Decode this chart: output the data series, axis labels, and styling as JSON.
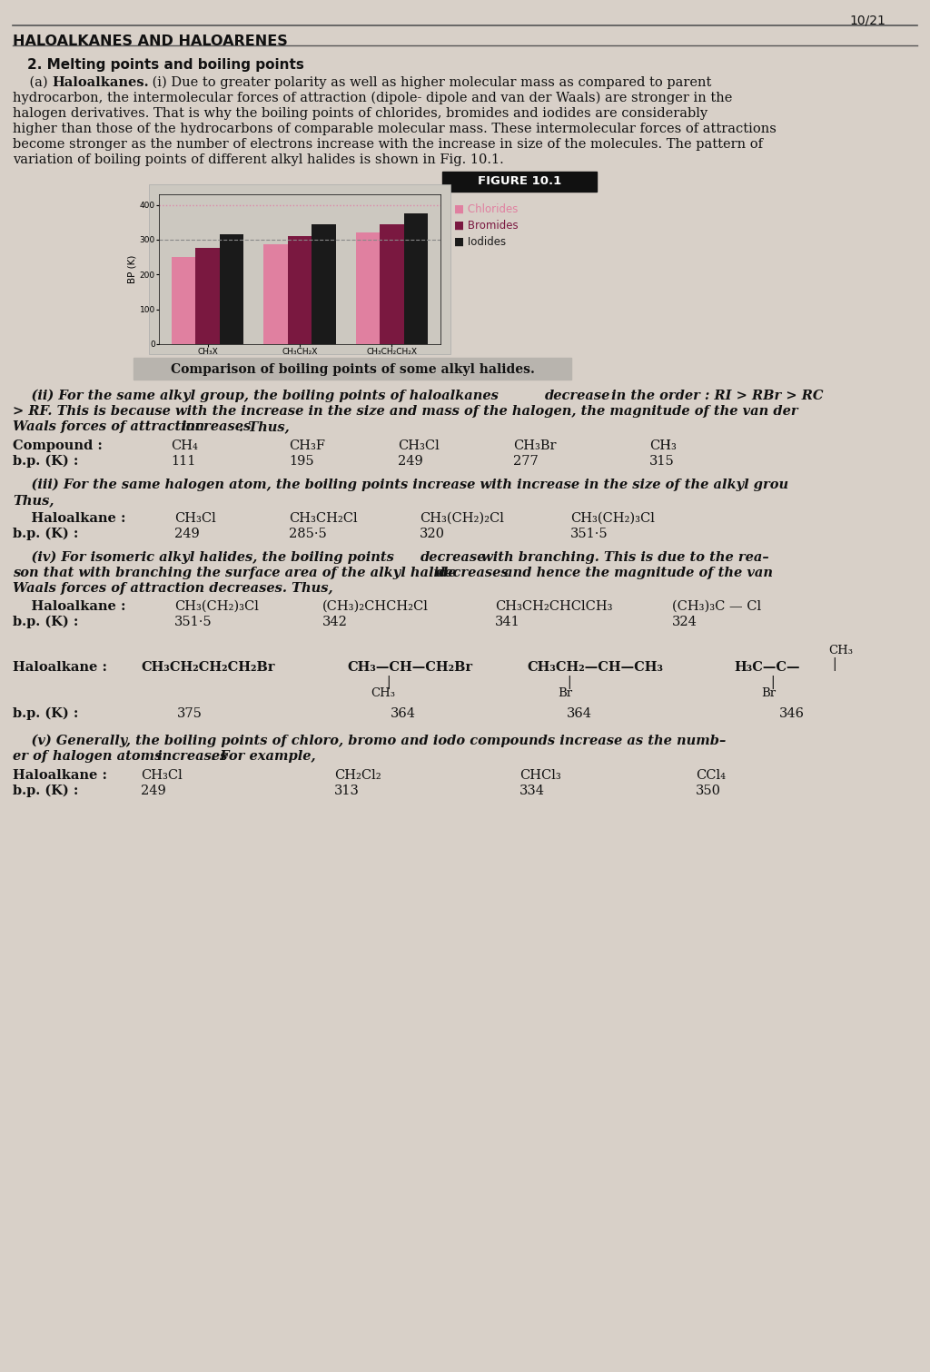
{
  "page_number": "10/21",
  "header": "HALOALKANES AND HALOARENES",
  "section_title": "2. Melting points and boiling points",
  "figure_label": "FIGURE 10.1",
  "chart_ylabel": "BP (K)",
  "chart_xticks": [
    "CH₃X",
    "CH₃CH₂X",
    "CH₃CH₂CH₂X"
  ],
  "chart_yticks": [
    0,
    100,
    200,
    300,
    400
  ],
  "chlorides_values": [
    249,
    285.5,
    320
  ],
  "bromides_values": [
    277,
    311,
    344
  ],
  "iodides_values": [
    315,
    345,
    376
  ],
  "chloride_color": "#e080a0",
  "bromide_color": "#7a1840",
  "iodide_color": "#1a1a1a",
  "chart_legend": [
    "Chlorides",
    "Bromides",
    "Iodides"
  ],
  "chart_caption": "Comparison of boiling points of some alkyl halides.",
  "bg_color": "#d8d0c8",
  "chart_bg": "#ccc8c0",
  "text_color": "#111111",
  "caption_bg": "#b8b4ae",
  "figure_box_color": "#111111",
  "para1_lines": [
    "    (a) Haloalkanes. (i) Due to greater polarity as well as higher molecular mass as compared to parent",
    "hydrocarbon, the intermolecular forces of attraction (dipole- dipole and van der Waals) are stronger in the",
    "halogen derivatives. That is why the boiling points of chlorides, bromides and iodides are considerably",
    "higher than those of the hydrocarbons of comparable molecular mass. These intermolecular forces of attractions",
    "become stronger as the number of electrons increase with the increase in size of the molecules. The pattern of",
    "variation of boiling points of different alkyl halides is shown in Fig. 10.1."
  ],
  "para2_lines": [
    "    (ii) For the same alkyl group, the boiling points of haloalkanes decrease in the order : RI > RBr > RC",
    "> RF. This is because with the increase in the size and mass of the halogen, the magnitude of the van der",
    "Waals forces of attraction increases. Thus,"
  ],
  "compounds_ii": [
    "CH₄",
    "CH₃F",
    "CH₃Cl",
    "CH₃Br",
    "CH₃"
  ],
  "bps_ii": [
    "111",
    "195",
    "249",
    "277",
    "315"
  ],
  "para3_line": "    (iii) For the same halogen atom, the boiling points increase with increase in the size of the alkyl grou",
  "haloalkanes_iii": [
    "CH₃Cl",
    "CH₃CH₂Cl",
    "CH₃(CH₂)₂Cl",
    "CH₃(CH₂)₃Cl"
  ],
  "bps_iii": [
    "249",
    "285·5",
    "320",
    "351·5"
  ],
  "para4_lines": [
    "    (iv) For isomeric alkyl halides, the boiling points decrease with branching. This is due to the rea–",
    "son that with branching the surface area of the alkyl halide decreases and hence the magnitude of the van",
    "Waals forces of attraction decreases. Thus,"
  ],
  "haloalkanes_iv": [
    "CH₃(CH₂)₃Cl",
    "(CH₃)₂CHCH₂Cl",
    "CH₃CH₂CHClCH₃",
    "(CH₃)₃C — Cl"
  ],
  "bps_iv": [
    "351·5",
    "342",
    "341",
    "324"
  ],
  "haloalkane_ivb_1": "CH₃CH₂CH₂CH₂Br",
  "haloalkane_ivb_2a": "CH₃—CH—CH₂Br",
  "haloalkane_ivb_2b": "CH₃",
  "haloalkane_ivb_3a": "CH₃CH₂—CH—CH₃",
  "haloalkane_ivb_3b": "Br",
  "haloalkane_ivb_4a": "H₃C—C—",
  "haloalkane_ivb_4b": "Br",
  "haloalkane_ivb_4c": "CH₃",
  "bps_ivb": [
    "375",
    "364",
    "364",
    "346"
  ],
  "para5_lines": [
    "    (v) Generally, the boiling points of chloro, bromo and iodo compounds increase as the numb–",
    "er of halogen atoms increases. For example,"
  ],
  "haloalkanes_v": [
    "CH₃Cl",
    "CH₂Cl₂",
    "CHCl₃",
    "CCl₄"
  ],
  "bps_v": [
    "249",
    "313",
    "334",
    "350"
  ]
}
